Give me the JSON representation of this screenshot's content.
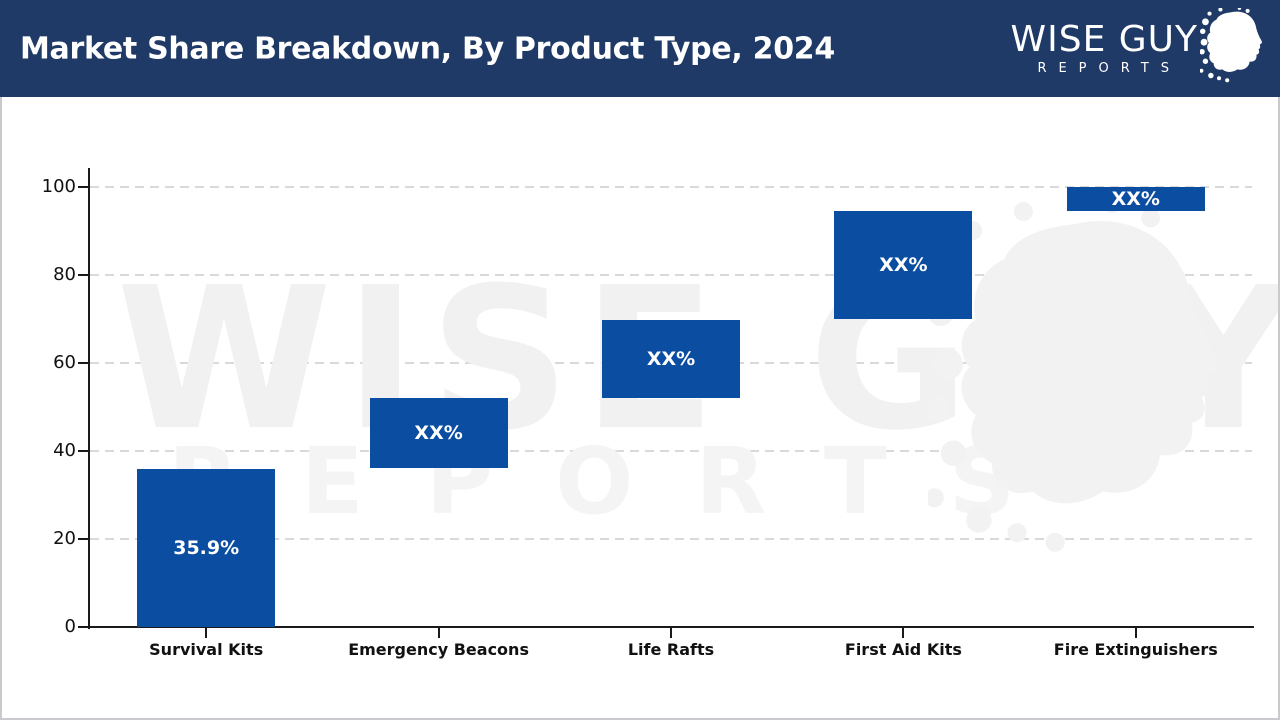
{
  "header": {
    "title": "Market Share Breakdown, By Product Type, 2024",
    "logo": {
      "wordmark": "WISE GUY",
      "subtitle": "REPORTS"
    }
  },
  "watermark": {
    "wordmark": "WISE GUY",
    "subtitle": "REPORTS"
  },
  "colors": {
    "header_bg": "#1f3a66",
    "bar": "#0b4da1",
    "bar_label_text": "#ffffff",
    "gridline": "#d9d9d9",
    "axis": "#1a1a1a",
    "watermark": "#f1f1f1",
    "frame_border": "#c9cace"
  },
  "chart_data": {
    "type": "bar",
    "subtype": "floating-waterfall",
    "title": "Market Share Breakdown, By Product Type, 2024",
    "categories": [
      "Survival Kits",
      "Emergency Beacons",
      "Life Rafts",
      "First Aid Kits",
      "Fire Extinguishers"
    ],
    "segments": [
      {
        "category": "Survival Kits",
        "start": 0,
        "end": 35.9,
        "label": "35.9%"
      },
      {
        "category": "Emergency Beacons",
        "start": 36.1,
        "end": 52.0,
        "label": "XX%"
      },
      {
        "category": "Life Rafts",
        "start": 52.0,
        "end": 69.8,
        "label": "XX%"
      },
      {
        "category": "First Aid Kits",
        "start": 69.9,
        "end": 94.5,
        "label": "XX%"
      },
      {
        "category": "Fire Extinguishers",
        "start": 94.5,
        "end": 100,
        "label": "XX%"
      }
    ],
    "yticks": [
      0,
      20,
      40,
      60,
      80,
      100
    ],
    "ylim": [
      0,
      104
    ],
    "xlabel": "",
    "ylabel": "",
    "grid": "horizontal-dashed",
    "legend": "none"
  }
}
